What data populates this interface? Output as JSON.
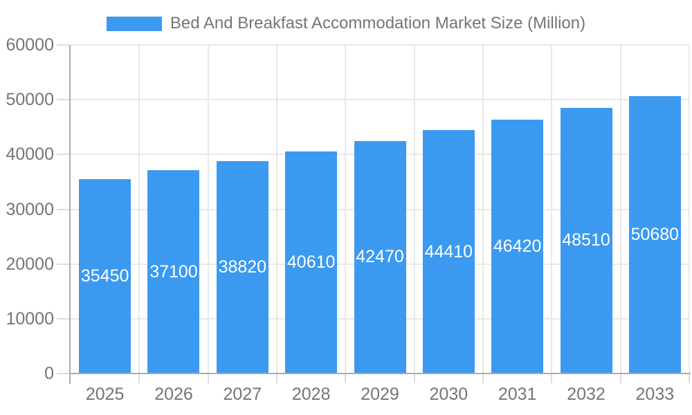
{
  "legend": {
    "label": "Bed And Breakfast Accommodation Market Size (Million)"
  },
  "chart_data": {
    "type": "bar",
    "title": "Bed And Breakfast Accommodation Market Size (Million)",
    "categories": [
      "2025",
      "2026",
      "2027",
      "2028",
      "2029",
      "2030",
      "2031",
      "2032",
      "2033"
    ],
    "series": [
      {
        "name": "Bed And Breakfast Accommodation Market Size (Million)",
        "values": [
          35450,
          37100,
          38820,
          40610,
          42470,
          44410,
          46420,
          48510,
          50680
        ]
      }
    ],
    "bar_value_labels": [
      "35450",
      "37100",
      "38820",
      "40610",
      "42470",
      "44410",
      "46420",
      "48510",
      "50680"
    ],
    "xlabel": "",
    "ylabel": "",
    "ylim": [
      0,
      60000
    ],
    "yticks": [
      0,
      10000,
      20000,
      30000,
      40000,
      50000,
      60000
    ],
    "grid": true,
    "legend_position": "top",
    "colors": {
      "bar": "#3B9AF0",
      "bar_label_text": "#FFFFFF",
      "axis_line": "#ABABAB",
      "grid_line": "#E8E8E8",
      "tick_line": "#DCDCDC",
      "tick_text": "#757575",
      "legend_text": "#757575",
      "background": "#FFFFFF"
    }
  }
}
